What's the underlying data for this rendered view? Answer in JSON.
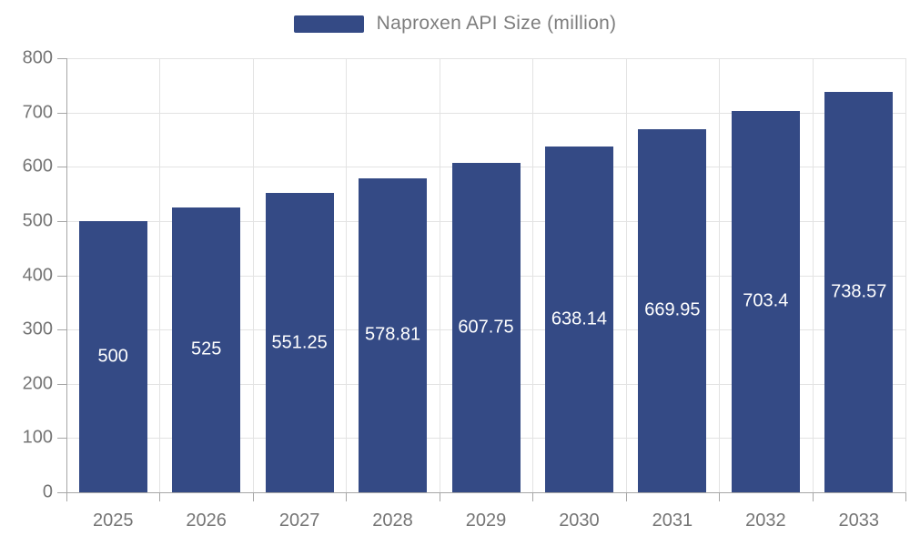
{
  "chart_data": {
    "type": "bar",
    "title": "",
    "legend": "Naproxen API Size (million)",
    "categories": [
      "2025",
      "2026",
      "2027",
      "2028",
      "2029",
      "2030",
      "2031",
      "2032",
      "2033"
    ],
    "values": [
      500,
      525,
      551.25,
      578.81,
      607.75,
      638.14,
      669.95,
      703.4,
      738.57
    ],
    "value_labels": [
      "500",
      "525",
      "551.25",
      "578.81",
      "607.75",
      "638.14",
      "669.95",
      "703.4",
      "738.57"
    ],
    "ylim": [
      0,
      800
    ],
    "ytick_step": 100,
    "xlabel": "",
    "ylabel": "",
    "grid": "horizontal and vertical gridlines on",
    "legend_position": "top-center"
  },
  "colors": {
    "bar": "#344A85",
    "gridline": "#E3E3E3",
    "axis_line": "#A6A6A6",
    "tick_label": "#757575",
    "legend_text": "#7D7D7D",
    "value_label": "#FFFFFF",
    "background": "#FFFFFF"
  }
}
